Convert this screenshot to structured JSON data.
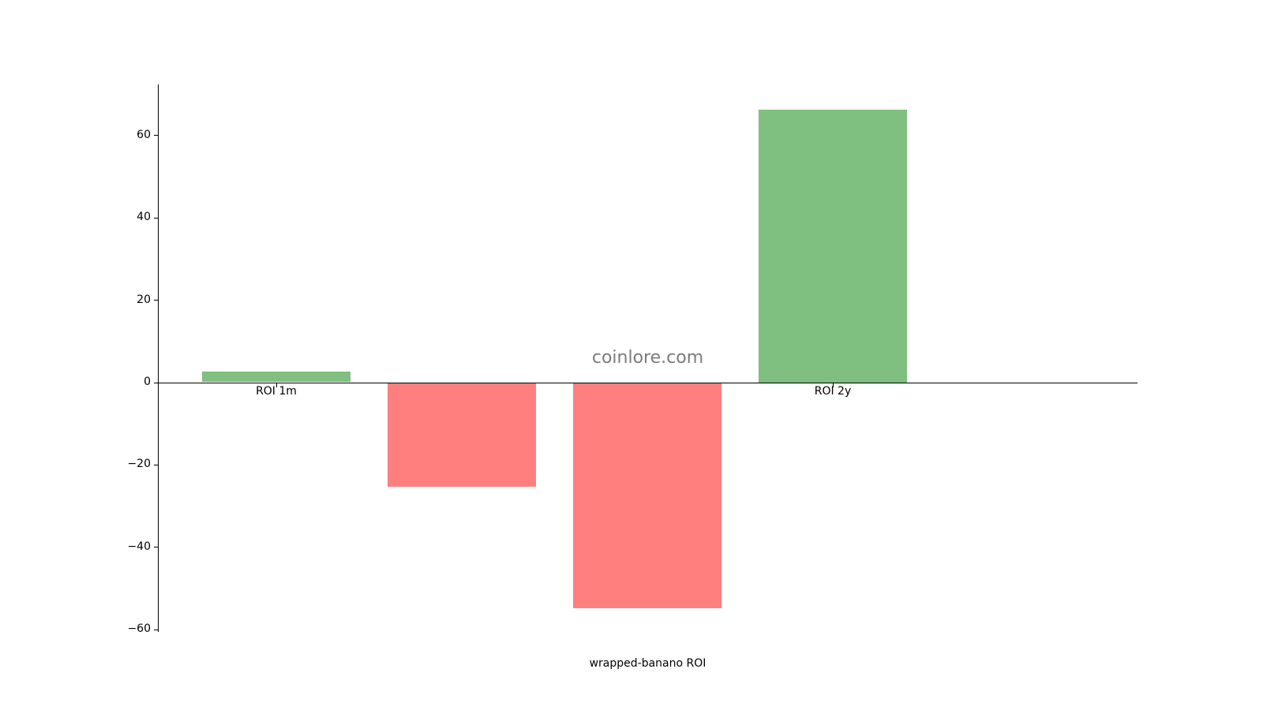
{
  "watermark_text": "coinlore.com",
  "watermark_color": "#7b7b7b",
  "chart_data": {
    "type": "bar",
    "title": "",
    "xlabel": "wrapped-banano ROI",
    "ylabel": "",
    "categories": [
      "ROI 1m",
      "",
      "",
      "ROI 2y"
    ],
    "values": [
      2.5,
      -25,
      -54.6,
      66.2
    ],
    "series": [
      {
        "name": "wrapped-banano ROI %",
        "values": [
          2.5,
          -25,
          -54.6,
          66.2
        ]
      }
    ],
    "positive_color": "#7fbf7f",
    "negative_color": "#ff7f7f",
    "axis_color": "#000000",
    "yticks": [
      60,
      40,
      20,
      0,
      -20,
      -40,
      -60
    ],
    "ytick_labels": [
      "60",
      "40",
      "20",
      "0",
      "−20",
      "−40",
      "−60"
    ],
    "ylim": [
      -60.6,
      72.3
    ],
    "grid": false,
    "legend_position": "none",
    "watermark": "coinlore.com"
  }
}
